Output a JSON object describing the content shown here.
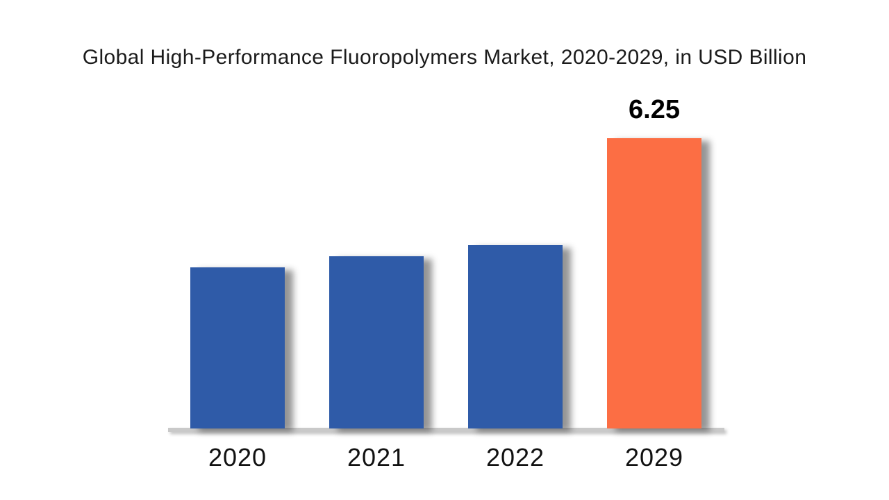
{
  "title": "Global High-Performance Fluoropolymers Market, 2020-2029, in USD Billion",
  "chart_data": {
    "type": "bar",
    "title": "Global High-Performance Fluoropolymers Market, 2020-2029, in USD Billion",
    "categories": [
      "2020",
      "2021",
      "2022",
      "2029"
    ],
    "values": [
      3.47,
      3.71,
      3.95,
      6.25
    ],
    "data_labels": [
      "",
      "",
      "",
      "6.25"
    ],
    "xlabel": "",
    "ylabel": "",
    "ylim": [
      0,
      6.25
    ],
    "grid": false,
    "legend": false,
    "colors": {
      "bar_default": "#2F5BA8",
      "bar_highlight": "#FC6E44",
      "axis_line": "#C9C9C9",
      "text": "#1B1B1B"
    },
    "bar_colors": [
      "#2F5BA8",
      "#2F5BA8",
      "#2F5BA8",
      "#FC6E44"
    ]
  }
}
